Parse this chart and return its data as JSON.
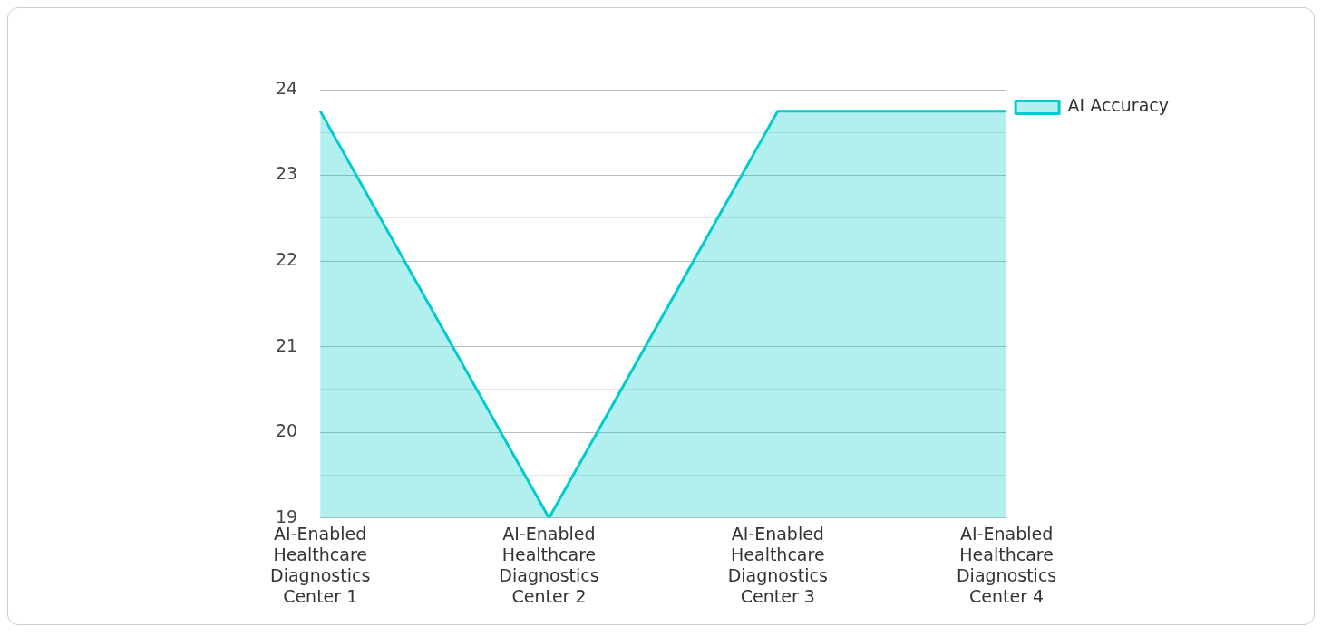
{
  "chart_data": {
    "type": "area",
    "categories": [
      "AI-Enabled Healthcare Diagnostics Center 1",
      "AI-Enabled Healthcare Diagnostics Center 2",
      "AI-Enabled Healthcare Diagnostics Center 3",
      "AI-Enabled Healthcare Diagnostics Center 4"
    ],
    "series": [
      {
        "name": "AI Accuracy",
        "color": "#00cccc",
        "values": [
          23.75,
          19,
          23.75,
          23.75
        ]
      }
    ],
    "ylim": [
      19,
      24
    ],
    "yticks": [
      19,
      {
        "value": 19.5,
        "label": null
      },
      20,
      {
        "value": 20.5,
        "label": null
      },
      21,
      {
        "value": 21.5,
        "label": null
      },
      22,
      {
        "value": 22.5,
        "label": null
      },
      23,
      {
        "value": 23.5,
        "label": null
      },
      24
    ],
    "grid": "y",
    "legend": "top right",
    "marker": "none",
    "line_style": "solid"
  }
}
